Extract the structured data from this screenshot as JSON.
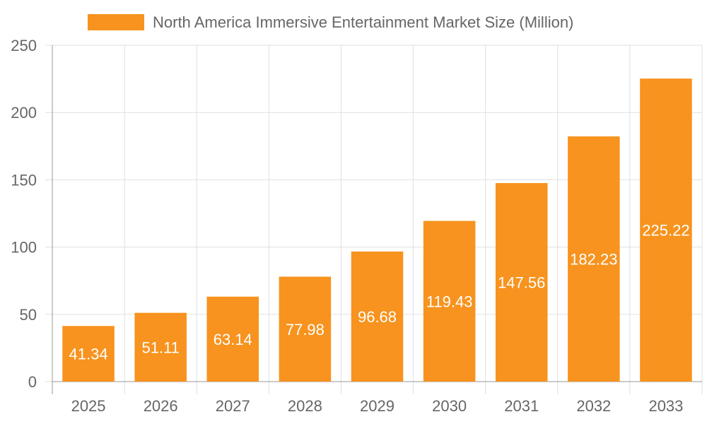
{
  "chart_data": {
    "type": "bar",
    "categories": [
      "2025",
      "2026",
      "2027",
      "2028",
      "2029",
      "2030",
      "2031",
      "2032",
      "2033"
    ],
    "series": [
      {
        "name": "North America Immersive Entertainment Market Size (Million)",
        "values": [
          41.34,
          51.11,
          63.14,
          77.98,
          96.68,
          119.43,
          147.56,
          182.23,
          225.22
        ]
      }
    ],
    "data_labels": [
      "41.34",
      "51.11",
      "63.14",
      "77.98",
      "96.68",
      "119.43",
      "147.56",
      "182.23",
      "225.22"
    ],
    "ylim": [
      0,
      250
    ],
    "yticks": [
      "0",
      "50",
      "100",
      "150",
      "200",
      "250"
    ],
    "grid": true,
    "legend_position": "top",
    "colors": {
      "bar": "#F7931E",
      "grid": "#e0e0e0",
      "axis": "#999999",
      "text": "#666666"
    }
  }
}
